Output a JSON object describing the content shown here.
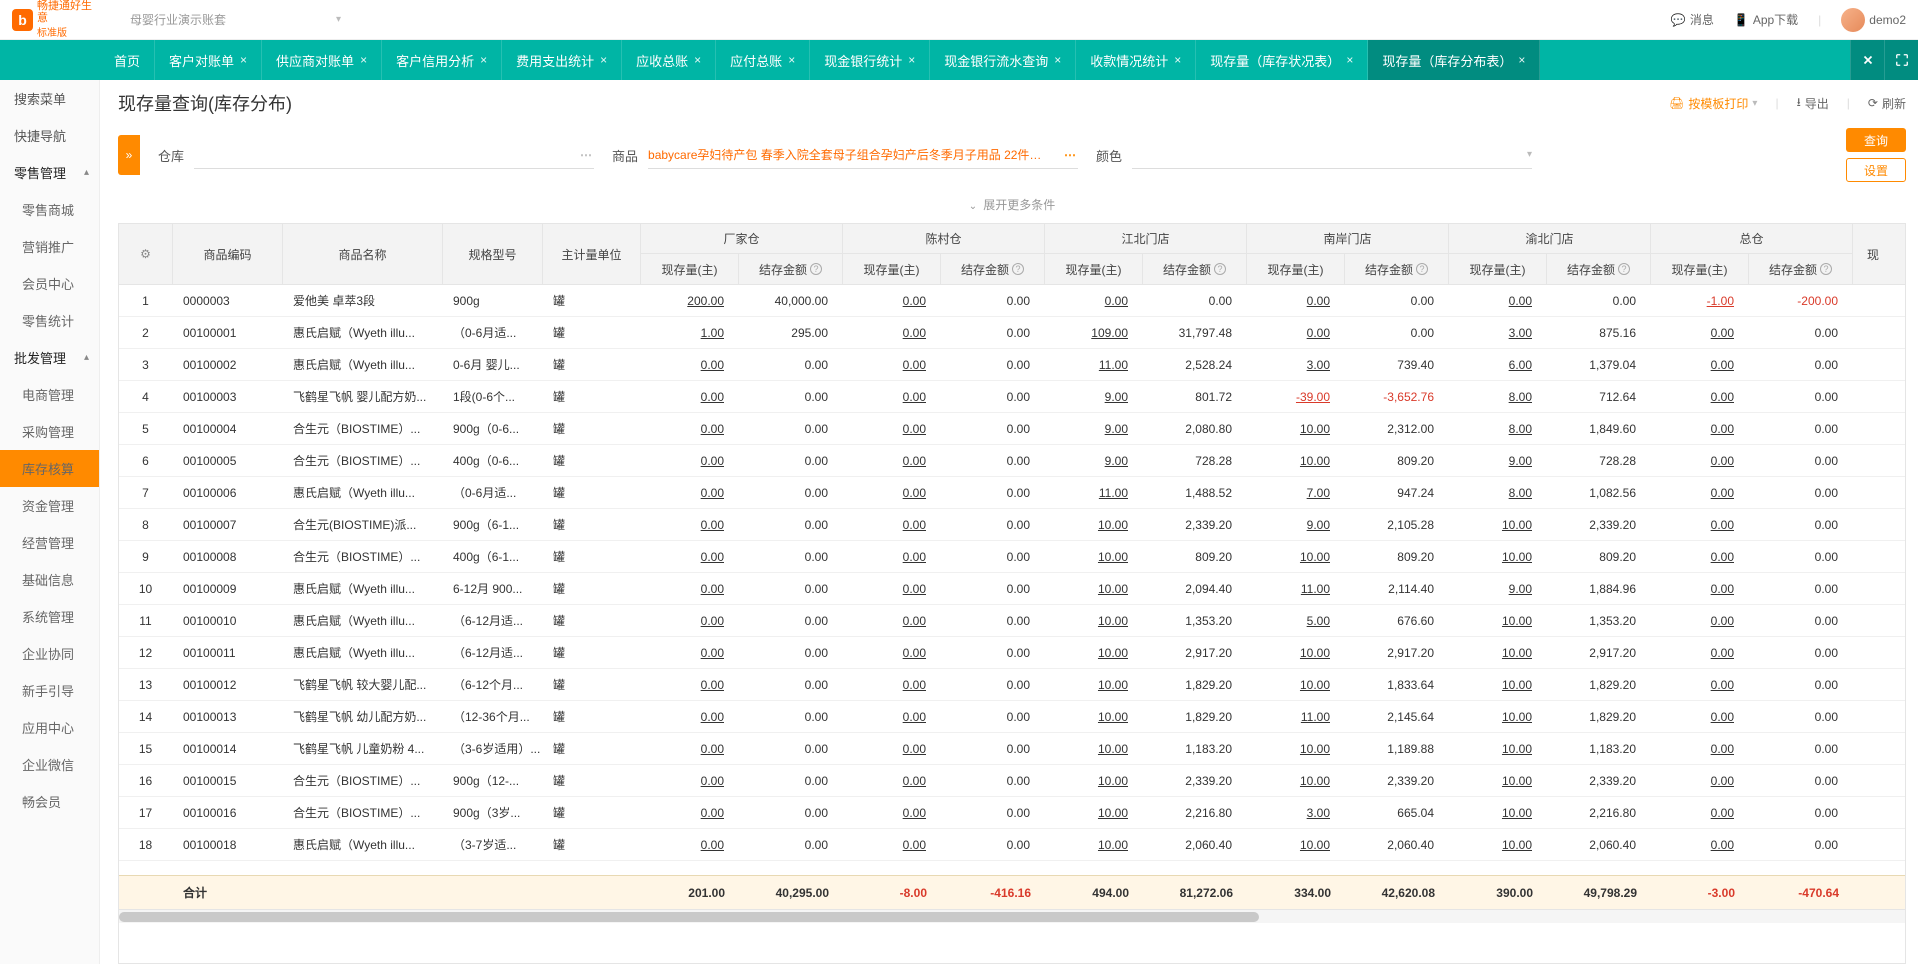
{
  "topbar": {
    "brand_line1": "畅捷通好生意",
    "brand_sub": "标准版",
    "account": "母婴行业演示账套",
    "msg": "消息",
    "app": "App下载",
    "user": "demo2"
  },
  "tabs": [
    {
      "label": "首页",
      "closable": false
    },
    {
      "label": "客户对账单",
      "closable": true
    },
    {
      "label": "供应商对账单",
      "closable": true
    },
    {
      "label": "客户信用分析",
      "closable": true
    },
    {
      "label": "费用支出统计",
      "closable": true
    },
    {
      "label": "应收总账",
      "closable": true
    },
    {
      "label": "应付总账",
      "closable": true
    },
    {
      "label": "现金银行统计",
      "closable": true
    },
    {
      "label": "现金银行流水查询",
      "closable": true
    },
    {
      "label": "收款情况统计",
      "closable": true
    },
    {
      "label": "现存量（库存状况表）",
      "closable": true
    },
    {
      "label": "现存量（库存分布表）",
      "closable": true,
      "active": true
    }
  ],
  "sidebar": {
    "search": "搜索菜单",
    "quick": "快捷导航",
    "groups": [
      {
        "label": "零售管理",
        "expanded": true,
        "items": [
          "零售商城",
          "营销推广",
          "会员中心",
          "零售统计"
        ]
      },
      {
        "label": "批发管理",
        "expanded": true,
        "items": [
          "电商管理",
          "采购管理",
          "库存核算",
          "资金管理",
          "经营管理",
          "基础信息",
          "系统管理",
          "企业协同",
          "新手引导",
          "应用中心",
          "企业微信",
          "畅会员"
        ],
        "activeIndex": 2
      }
    ]
  },
  "page": {
    "title": "现存量查询(库存分布)",
    "print": "按模板打印",
    "export": "导出",
    "refresh": "刷新",
    "query": "查询",
    "settings": "设置",
    "more": "展开更多条件",
    "filters": {
      "warehouse_label": "仓库",
      "product_label": "商品",
      "product_value": "babycare孕妇待产包 春季入院全套母子组合孕妇产后冬季月子用品 22件套 >",
      "color_label": "颜色"
    }
  },
  "columns": {
    "idx": "",
    "code": "商品编码",
    "name": "商品名称",
    "spec": "规格型号",
    "unit": "主计量单位",
    "groups": [
      "厂家仓",
      "陈村仓",
      "江北门店",
      "南岸门店",
      "渝北门店",
      "总仓"
    ],
    "sub_qty": "现存量(主)",
    "sub_amt": "结存金额",
    "extra": "现"
  },
  "rows": [
    {
      "i": 1,
      "code": "0000003",
      "name": "爱他美 卓萃3段",
      "spec": "900g",
      "unit": "罐",
      "q": [
        [
          "200.00",
          "40,000.00"
        ],
        [
          "0.00",
          "0.00"
        ],
        [
          "0.00",
          "0.00"
        ],
        [
          "0.00",
          "0.00"
        ],
        [
          "0.00",
          "0.00"
        ],
        [
          "-1.00",
          "-200.00"
        ]
      ]
    },
    {
      "i": 2,
      "code": "00100001",
      "name": "惠氏启赋（Wyeth illu...",
      "spec": "（0-6月适...",
      "unit": "罐",
      "q": [
        [
          "1.00",
          "295.00"
        ],
        [
          "0.00",
          "0.00"
        ],
        [
          "109.00",
          "31,797.48"
        ],
        [
          "0.00",
          "0.00"
        ],
        [
          "3.00",
          "875.16"
        ],
        [
          "0.00",
          "0.00"
        ]
      ]
    },
    {
      "i": 3,
      "code": "00100002",
      "name": "惠氏启赋（Wyeth illu...",
      "spec": "0-6月 婴儿...",
      "unit": "罐",
      "q": [
        [
          "0.00",
          "0.00"
        ],
        [
          "0.00",
          "0.00"
        ],
        [
          "11.00",
          "2,528.24"
        ],
        [
          "3.00",
          "739.40"
        ],
        [
          "6.00",
          "1,379.04"
        ],
        [
          "0.00",
          "0.00"
        ]
      ]
    },
    {
      "i": 4,
      "code": "00100003",
      "name": "飞鹤星飞帆 婴儿配方奶...",
      "spec": "1段(0-6个...",
      "unit": "罐",
      "q": [
        [
          "0.00",
          "0.00"
        ],
        [
          "0.00",
          "0.00"
        ],
        [
          "9.00",
          "801.72"
        ],
        [
          "-39.00",
          "-3,652.76"
        ],
        [
          "8.00",
          "712.64"
        ],
        [
          "0.00",
          "0.00"
        ]
      ]
    },
    {
      "i": 5,
      "code": "00100004",
      "name": "合生元（BIOSTIME）...",
      "spec": "900g（0-6...",
      "unit": "罐",
      "q": [
        [
          "0.00",
          "0.00"
        ],
        [
          "0.00",
          "0.00"
        ],
        [
          "9.00",
          "2,080.80"
        ],
        [
          "10.00",
          "2,312.00"
        ],
        [
          "8.00",
          "1,849.60"
        ],
        [
          "0.00",
          "0.00"
        ]
      ]
    },
    {
      "i": 6,
      "code": "00100005",
      "name": "合生元（BIOSTIME）...",
      "spec": "400g（0-6...",
      "unit": "罐",
      "q": [
        [
          "0.00",
          "0.00"
        ],
        [
          "0.00",
          "0.00"
        ],
        [
          "9.00",
          "728.28"
        ],
        [
          "10.00",
          "809.20"
        ],
        [
          "9.00",
          "728.28"
        ],
        [
          "0.00",
          "0.00"
        ]
      ]
    },
    {
      "i": 7,
      "code": "00100006",
      "name": "惠氏启赋（Wyeth illu...",
      "spec": "（0-6月适...",
      "unit": "罐",
      "q": [
        [
          "0.00",
          "0.00"
        ],
        [
          "0.00",
          "0.00"
        ],
        [
          "11.00",
          "1,488.52"
        ],
        [
          "7.00",
          "947.24"
        ],
        [
          "8.00",
          "1,082.56"
        ],
        [
          "0.00",
          "0.00"
        ]
      ]
    },
    {
      "i": 8,
      "code": "00100007",
      "name": "合生元(BIOSTIME)派...",
      "spec": "900g（6-1...",
      "unit": "罐",
      "q": [
        [
          "0.00",
          "0.00"
        ],
        [
          "0.00",
          "0.00"
        ],
        [
          "10.00",
          "2,339.20"
        ],
        [
          "9.00",
          "2,105.28"
        ],
        [
          "10.00",
          "2,339.20"
        ],
        [
          "0.00",
          "0.00"
        ]
      ]
    },
    {
      "i": 9,
      "code": "00100008",
      "name": "合生元（BIOSTIME）...",
      "spec": "400g（6-1...",
      "unit": "罐",
      "q": [
        [
          "0.00",
          "0.00"
        ],
        [
          "0.00",
          "0.00"
        ],
        [
          "10.00",
          "809.20"
        ],
        [
          "10.00",
          "809.20"
        ],
        [
          "10.00",
          "809.20"
        ],
        [
          "0.00",
          "0.00"
        ]
      ]
    },
    {
      "i": 10,
      "code": "00100009",
      "name": "惠氏启赋（Wyeth illu...",
      "spec": "6-12月 900...",
      "unit": "罐",
      "q": [
        [
          "0.00",
          "0.00"
        ],
        [
          "0.00",
          "0.00"
        ],
        [
          "10.00",
          "2,094.40"
        ],
        [
          "11.00",
          "2,114.40"
        ],
        [
          "9.00",
          "1,884.96"
        ],
        [
          "0.00",
          "0.00"
        ]
      ]
    },
    {
      "i": 11,
      "code": "00100010",
      "name": "惠氏启赋（Wyeth illu...",
      "spec": "（6-12月适...",
      "unit": "罐",
      "q": [
        [
          "0.00",
          "0.00"
        ],
        [
          "0.00",
          "0.00"
        ],
        [
          "10.00",
          "1,353.20"
        ],
        [
          "5.00",
          "676.60"
        ],
        [
          "10.00",
          "1,353.20"
        ],
        [
          "0.00",
          "0.00"
        ]
      ]
    },
    {
      "i": 12,
      "code": "00100011",
      "name": "惠氏启赋（Wyeth illu...",
      "spec": "（6-12月适...",
      "unit": "罐",
      "q": [
        [
          "0.00",
          "0.00"
        ],
        [
          "0.00",
          "0.00"
        ],
        [
          "10.00",
          "2,917.20"
        ],
        [
          "10.00",
          "2,917.20"
        ],
        [
          "10.00",
          "2,917.20"
        ],
        [
          "0.00",
          "0.00"
        ]
      ]
    },
    {
      "i": 13,
      "code": "00100012",
      "name": "飞鹤星飞帆 较大婴儿配...",
      "spec": "（6-12个月...",
      "unit": "罐",
      "q": [
        [
          "0.00",
          "0.00"
        ],
        [
          "0.00",
          "0.00"
        ],
        [
          "10.00",
          "1,829.20"
        ],
        [
          "10.00",
          "1,833.64"
        ],
        [
          "10.00",
          "1,829.20"
        ],
        [
          "0.00",
          "0.00"
        ]
      ]
    },
    {
      "i": 14,
      "code": "00100013",
      "name": "飞鹤星飞帆 幼儿配方奶...",
      "spec": "（12-36个月...",
      "unit": "罐",
      "q": [
        [
          "0.00",
          "0.00"
        ],
        [
          "0.00",
          "0.00"
        ],
        [
          "10.00",
          "1,829.20"
        ],
        [
          "11.00",
          "2,145.64"
        ],
        [
          "10.00",
          "1,829.20"
        ],
        [
          "0.00",
          "0.00"
        ]
      ]
    },
    {
      "i": 15,
      "code": "00100014",
      "name": "飞鹤星飞帆 儿童奶粉 4...",
      "spec": "（3-6岁适用）...",
      "unit": "罐",
      "q": [
        [
          "0.00",
          "0.00"
        ],
        [
          "0.00",
          "0.00"
        ],
        [
          "10.00",
          "1,183.20"
        ],
        [
          "10.00",
          "1,189.88"
        ],
        [
          "10.00",
          "1,183.20"
        ],
        [
          "0.00",
          "0.00"
        ]
      ]
    },
    {
      "i": 16,
      "code": "00100015",
      "name": "合生元（BIOSTIME）...",
      "spec": "900g（12-...",
      "unit": "罐",
      "q": [
        [
          "0.00",
          "0.00"
        ],
        [
          "0.00",
          "0.00"
        ],
        [
          "10.00",
          "2,339.20"
        ],
        [
          "10.00",
          "2,339.20"
        ],
        [
          "10.00",
          "2,339.20"
        ],
        [
          "0.00",
          "0.00"
        ]
      ]
    },
    {
      "i": 17,
      "code": "00100016",
      "name": "合生元（BIOSTIME）...",
      "spec": "900g（3岁...",
      "unit": "罐",
      "q": [
        [
          "0.00",
          "0.00"
        ],
        [
          "0.00",
          "0.00"
        ],
        [
          "10.00",
          "2,216.80"
        ],
        [
          "3.00",
          "665.04"
        ],
        [
          "10.00",
          "2,216.80"
        ],
        [
          "0.00",
          "0.00"
        ]
      ]
    },
    {
      "i": 18,
      "code": "00100018",
      "name": "惠氏启赋（Wyeth illu...",
      "spec": "（3-7岁适...",
      "unit": "罐",
      "q": [
        [
          "0.00",
          "0.00"
        ],
        [
          "0.00",
          "0.00"
        ],
        [
          "10.00",
          "2,060.40"
        ],
        [
          "10.00",
          "2,060.40"
        ],
        [
          "10.00",
          "2,060.40"
        ],
        [
          "0.00",
          "0.00"
        ]
      ]
    }
  ],
  "totals": {
    "label": "合计",
    "q": [
      [
        "201.00",
        "40,295.00"
      ],
      [
        "-8.00",
        "-416.16"
      ],
      [
        "494.00",
        "81,272.06"
      ],
      [
        "334.00",
        "42,620.08"
      ],
      [
        "390.00",
        "49,798.29"
      ],
      [
        "-3.00",
        "-470.64"
      ]
    ]
  }
}
